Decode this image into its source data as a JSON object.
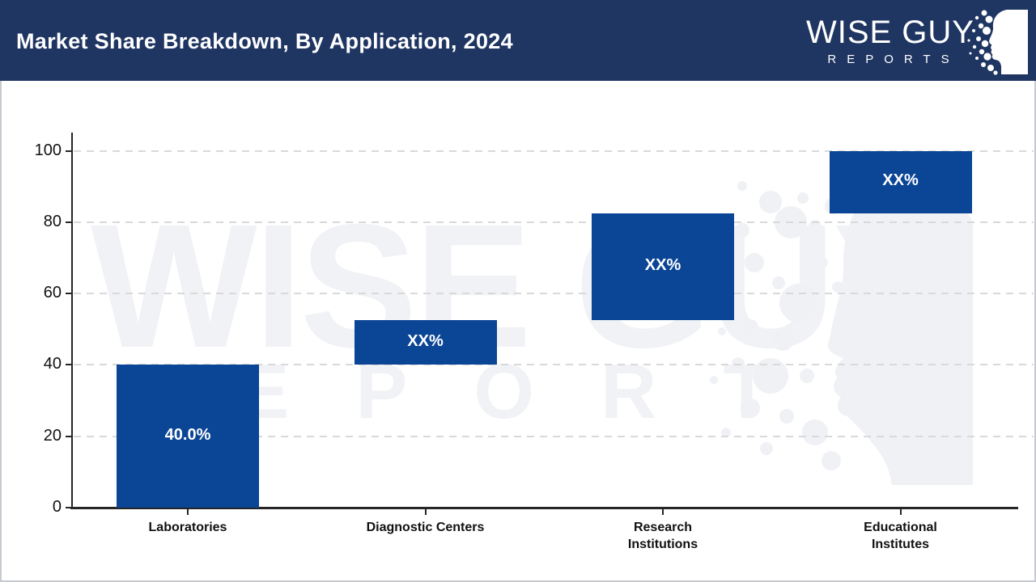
{
  "header": {
    "title": "Market Share Breakdown, By Application, 2024",
    "bg_color": "#1f3562",
    "logo": {
      "wordmark": "WISE GUY",
      "subtext": "REPORTS"
    }
  },
  "watermark": {
    "line1": "WISE GUY",
    "line2": "REPORTS"
  },
  "chart_data": {
    "type": "bar",
    "variant": "waterfall-breakdown",
    "title": "Market Share Breakdown, By Application, 2024",
    "categories": [
      {
        "name": "Laboratories",
        "lines": [
          "Laboratories"
        ]
      },
      {
        "name": "Diagnostic Centers",
        "lines": [
          "Diagnostic Centers"
        ]
      },
      {
        "name": "Research Institutions",
        "lines": [
          "Research",
          "Institutions"
        ]
      },
      {
        "name": "Educational Institutes",
        "lines": [
          "Educational",
          "Institutes"
        ]
      }
    ],
    "bars": [
      {
        "category": "Laboratories",
        "base": 0,
        "top": 40,
        "label": "40.0%"
      },
      {
        "category": "Diagnostic Centers",
        "base": 40,
        "top": 52.5,
        "label": "XX%"
      },
      {
        "category": "Research Institutions",
        "base": 52.5,
        "top": 82.5,
        "label": "XX%"
      },
      {
        "category": "Educational Institutes",
        "base": 82.5,
        "top": 100,
        "label": "XX%"
      }
    ],
    "ylim": [
      0,
      100
    ],
    "yticks": [
      0,
      20,
      40,
      60,
      80,
      100
    ],
    "grid": {
      "horizontal": true,
      "style": "dashed"
    },
    "legend": "none",
    "colors": {
      "bar": "#0b4596",
      "bar_label": "#ffffff",
      "axis": "#262626",
      "gridline": "#d9d9d9",
      "tick_label": "#111111",
      "header_bg": "#1f3562",
      "watermark": "#f1f2f5"
    }
  }
}
